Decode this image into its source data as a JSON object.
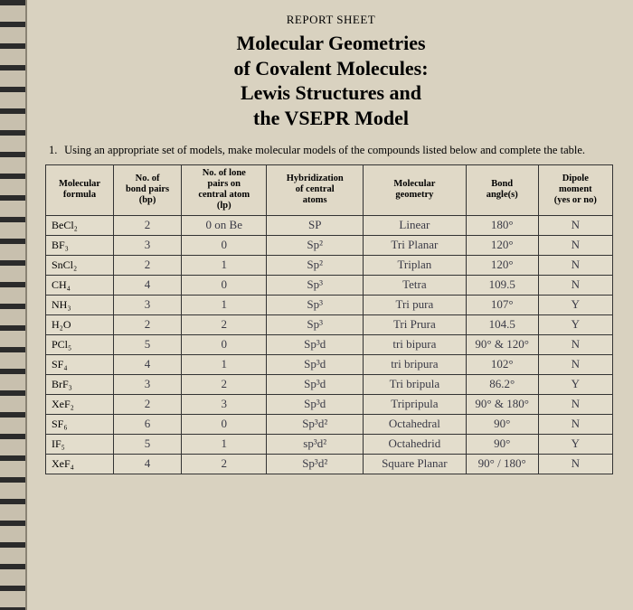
{
  "header": {
    "report_line": "REPORT SHEET",
    "title_l1": "Molecular Geometries",
    "title_l2": "of Covalent Molecules:",
    "title_l3": "Lewis Structures and",
    "title_l4": "the VSEPR Model"
  },
  "instruction": {
    "num": "1.",
    "text": "Using an appropriate set of models, make molecular models of the compounds listed below and complete the table."
  },
  "columns": {
    "c1a": "Molecular",
    "c1b": "formula",
    "c2a": "No. of",
    "c2b": "bond pairs",
    "c2c": "(bp)",
    "c3a": "No. of lone",
    "c3b": "pairs on",
    "c3c": "central atom",
    "c3d": "(lp)",
    "c4a": "Hybridization",
    "c4b": "of central",
    "c4c": "atoms",
    "c5a": "Molecular",
    "c5b": "geometry",
    "c6a": "Bond",
    "c6b": "angle(s)",
    "c7a": "Dipole",
    "c7b": "moment",
    "c7c": "(yes or no)"
  },
  "rows": [
    {
      "formula": "BeCl₂",
      "bp": "2",
      "lp": "0 on Be",
      "hyb": "SP",
      "geom": "Linear",
      "ang": "180°",
      "dip": "N"
    },
    {
      "formula": "BF₃",
      "bp": "3",
      "lp": "0",
      "hyb": "Sp²",
      "geom": "Tri Planar",
      "ang": "120°",
      "dip": "N"
    },
    {
      "formula": "SnCl₂",
      "bp": "2",
      "lp": "1",
      "hyb": "Sp²",
      "geom": "Triplan",
      "ang": "120°",
      "dip": "N"
    },
    {
      "formula": "CH₄",
      "bp": "4",
      "lp": "0",
      "hyb": "Sp³",
      "geom": "Tetra",
      "ang": "109.5",
      "dip": "N"
    },
    {
      "formula": "NH₃",
      "bp": "3",
      "lp": "1",
      "hyb": "Sp³",
      "geom": "Tri pura",
      "ang": "107°",
      "dip": "Y"
    },
    {
      "formula": "H₂O",
      "bp": "2",
      "lp": "2",
      "hyb": "Sp³",
      "geom": "Tri Prura",
      "ang": "104.5",
      "dip": "Y"
    },
    {
      "formula": "PCl₅",
      "bp": "5",
      "lp": "0",
      "hyb": "Sp³d",
      "geom": "tri bipura",
      "ang": "90° & 120°",
      "dip": "N"
    },
    {
      "formula": "SF₄",
      "bp": "4",
      "lp": "1",
      "hyb": "Sp³d",
      "geom": "tri bripura",
      "ang": "102°",
      "dip": "N"
    },
    {
      "formula": "BrF₃",
      "bp": "3",
      "lp": "2",
      "hyb": "Sp³d",
      "geom": "Tri bripula",
      "ang": "86.2°",
      "dip": "Y"
    },
    {
      "formula": "XeF₂",
      "bp": "2",
      "lp": "3",
      "hyb": "Sp³d",
      "geom": "Tripripula",
      "ang": "90° & 180°",
      "dip": "N"
    },
    {
      "formula": "SF₆",
      "bp": "6",
      "lp": "0",
      "hyb": "Sp³d²",
      "geom": "Octahedral",
      "ang": "90°",
      "dip": "N"
    },
    {
      "formula": "IF₅",
      "bp": "5",
      "lp": "1",
      "hyb": "sp³d²",
      "geom": "Octahedrid",
      "ang": "90°",
      "dip": "Y"
    },
    {
      "formula": "XeF₄",
      "bp": "4",
      "lp": "2",
      "hyb": "Sp³d²",
      "geom": "Square Planar",
      "ang": "90° / 180°",
      "dip": "N"
    }
  ]
}
